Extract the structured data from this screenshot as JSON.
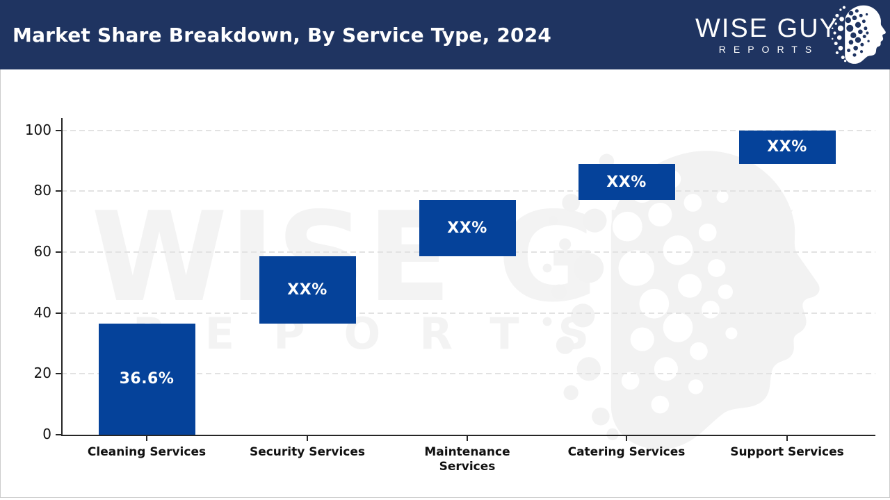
{
  "header": {
    "title": "Market Share Breakdown, By Service Type, 2024",
    "brand": {
      "name_top": "WISE GUY",
      "name_bottom": "REPORTS"
    }
  },
  "watermark": {
    "line1": "WISE GUY",
    "line2": "REPORTS"
  },
  "chart_data": {
    "type": "bar",
    "subtype": "waterfall",
    "title": "Market Share Breakdown, By Service Type, 2024",
    "categories": [
      "Cleaning Services",
      "Security Services",
      "Maintenance Services",
      "Catering Services",
      "Support Services"
    ],
    "segments": [
      {
        "category": "Cleaning Services",
        "start": 0,
        "end": 36.6,
        "label": "36.6%"
      },
      {
        "category": "Security Services",
        "start": 36.6,
        "end": 58.5,
        "label": "XX%"
      },
      {
        "category": "Maintenance Services",
        "start": 58.5,
        "end": 77.0,
        "label": "XX%"
      },
      {
        "category": "Catering Services",
        "start": 77.0,
        "end": 89.0,
        "label": "XX%"
      },
      {
        "category": "Support Services",
        "start": 89.0,
        "end": 100.0,
        "label": "XX%"
      }
    ],
    "xlabel": "",
    "ylabel": "",
    "ylim": [
      0,
      100
    ],
    "yticks": [
      0,
      20,
      40,
      60,
      80,
      100
    ],
    "grid": "horizontal-dashed",
    "legend": "none",
    "bar_color": "#05429a",
    "bar_label_color": "#ffffff"
  },
  "colors": {
    "header_bg": "#1f3461",
    "bar": "#05429a",
    "grid": "#e2e2e2",
    "axis": "#262626",
    "tick_text": "#111111",
    "watermark": "#f3f3f3",
    "border": "#cccccc"
  },
  "icons": {
    "logo_face": "wiseguy-dotted-face-logo",
    "watermark_face": "wiseguy-dotted-face-watermark"
  }
}
